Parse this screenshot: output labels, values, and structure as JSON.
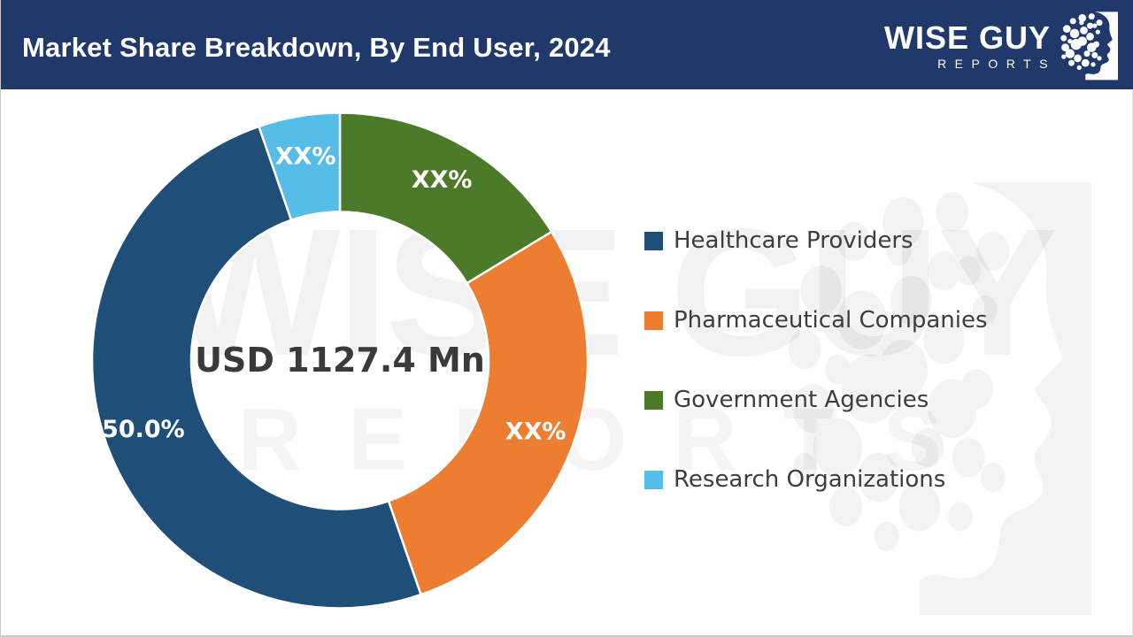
{
  "header": {
    "title": "Market Share Breakdown, By End User, 2024",
    "logo": {
      "line1": "WISE GUY",
      "line2": "REPORTS"
    }
  },
  "watermark": {
    "line1": "WISE GUY",
    "line2": "REPORTS"
  },
  "colors": {
    "header_bg": "#21386B",
    "healthcare_blue": "#1F4E79",
    "pharma_orange": "#ED7D31",
    "government_green": "#4B7A28",
    "research_cyan": "#56BDE8",
    "center_text": "#3a3a3a",
    "legend_text": "#3d3d3d"
  },
  "chart_data": {
    "type": "pie",
    "subtype": "donut",
    "title": "Market Share Breakdown, By End User, 2024",
    "center_label": "USD 1127.4 Mn",
    "start_angle_deg": 0,
    "direction": "clockwise",
    "donut_hole_ratio": 0.6,
    "segments": [
      {
        "name": "Government Agencies",
        "value_pct": 16.3,
        "label": "XX%",
        "color": "#4B7A28"
      },
      {
        "name": "Pharmaceutical Companies",
        "value_pct": 28.4,
        "label": "XX%",
        "color": "#ED7D31"
      },
      {
        "name": "Healthcare Providers",
        "value_pct": 50.0,
        "label": "50.0%",
        "color": "#1F4E79"
      },
      {
        "name": "Research Organizations",
        "value_pct": 5.3,
        "label": "XX%",
        "color": "#56BDE8"
      }
    ],
    "legend": [
      {
        "label": "Healthcare Providers",
        "color": "#1F4E79"
      },
      {
        "label": "Pharmaceutical Companies",
        "color": "#ED7D31"
      },
      {
        "label": "Government Agencies",
        "color": "#4B7A28"
      },
      {
        "label": "Research Organizations",
        "color": "#56BDE8"
      }
    ],
    "legend_position": "right"
  }
}
